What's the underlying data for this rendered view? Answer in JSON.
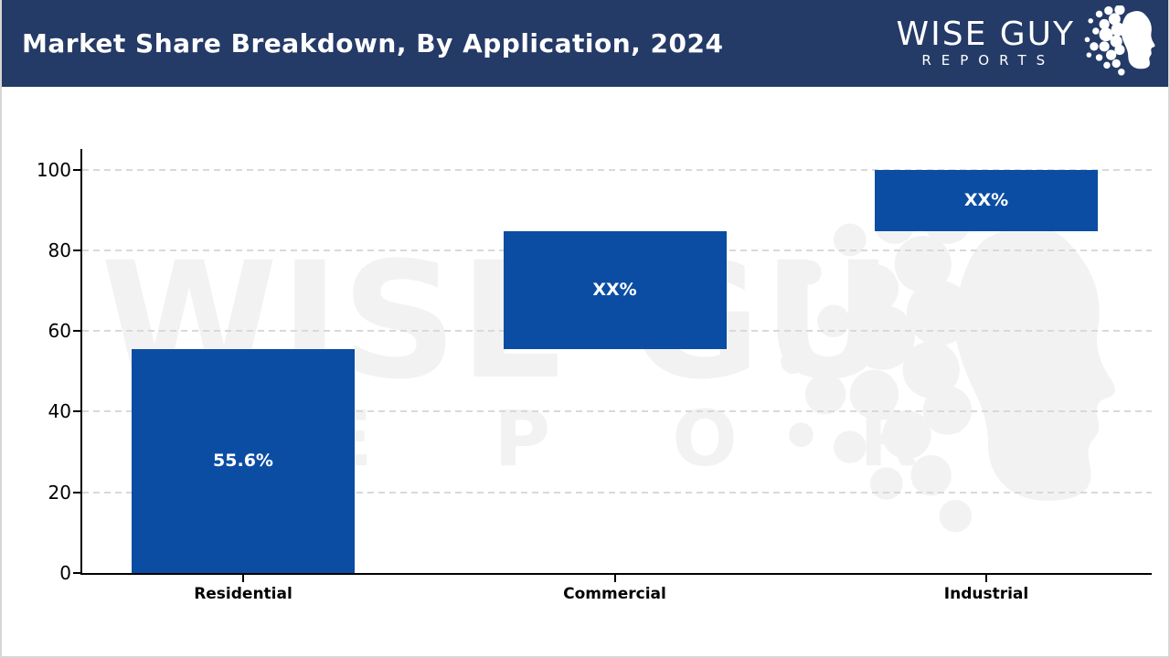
{
  "header": {
    "title": "Market Share Breakdown, By Application, 2024"
  },
  "logo": {
    "line1": "WISE GUY",
    "line2": "REPORTS",
    "head_icon": "dotted-head-profile"
  },
  "watermark": {
    "line1": "WISE GU",
    "line2": "R E P O R T S",
    "head_icon": "dotted-head-profile"
  },
  "chart_data": {
    "type": "bar",
    "subtype": "stacked-waterfall",
    "title": "Market Share Breakdown, By Application, 2024",
    "categories": [
      "Residential",
      "Commercial",
      "Industrial"
    ],
    "segments": [
      {
        "category": "Residential",
        "from": 0,
        "to": 55.6,
        "label": "55.6%"
      },
      {
        "category": "Commercial",
        "from": 55.6,
        "to": 84.8,
        "label": "XX%"
      },
      {
        "category": "Industrial",
        "from": 84.8,
        "to": 100,
        "label": "XX%"
      }
    ],
    "yticks": [
      0,
      20,
      40,
      60,
      80,
      100
    ],
    "ylim": [
      0,
      105
    ],
    "grid": "dashed-horizontal",
    "legend": "none",
    "xlabel": "",
    "ylabel": ""
  },
  "colors": {
    "header_navy": "#243a67",
    "bar_blue": "#0b4da2",
    "bar_label_white": "#ffffff",
    "gridline_gray": "#d9d9d9",
    "axis_black": "#000000",
    "watermark_gray": "#f2f2f2",
    "frame_border_gray": "#d6d6d6"
  }
}
